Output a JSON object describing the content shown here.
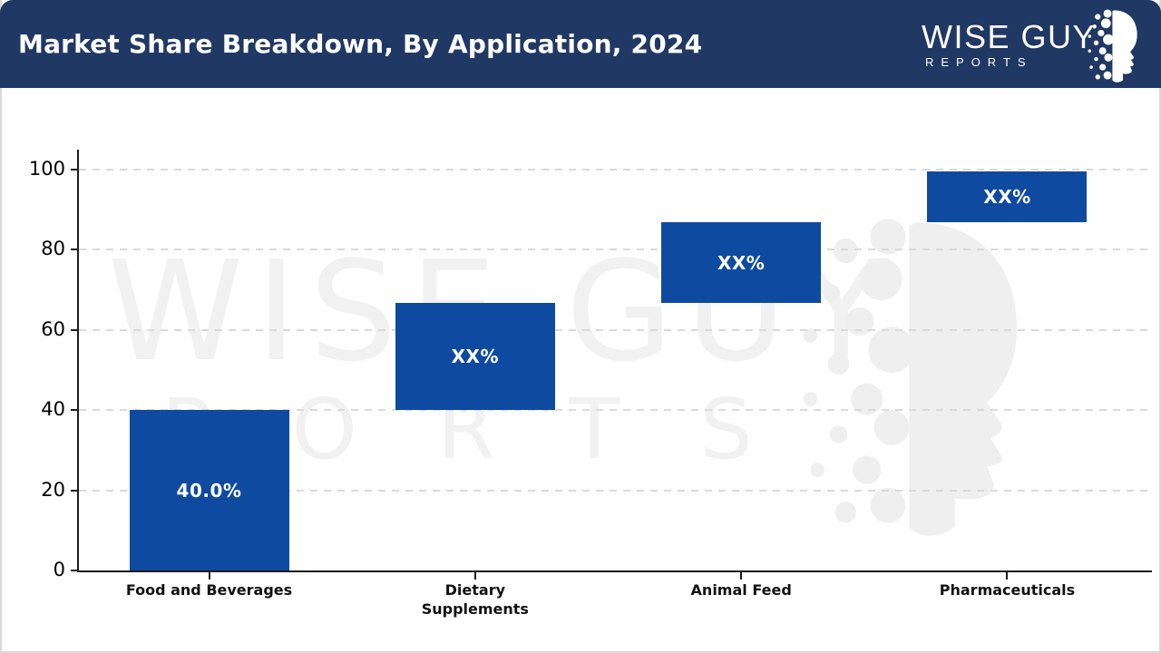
{
  "header": {
    "title": "Market Share Breakdown, By Application, 2024",
    "bg_color": "#1f3864",
    "text_color": "#ffffff",
    "brand": {
      "line1": "WISE GUY",
      "line2": "REPORTS"
    }
  },
  "watermark": {
    "line1": "WISE GUY",
    "line2": "PORTS"
  },
  "chart_data": {
    "type": "bar",
    "subtype": "floating-waterfall",
    "title": "Market Share Breakdown, By Application, 2024",
    "categories": [
      "Food and Beverages",
      "Dietary\nSupplements",
      "Animal Feed",
      "Pharmaceuticals"
    ],
    "segments": [
      {
        "category": "Food and Beverages",
        "start": 0,
        "end": 40.0,
        "label": "40.0%"
      },
      {
        "category": "Dietary\nSupplements",
        "start": 40.0,
        "end": 66.8,
        "label": "XX%"
      },
      {
        "category": "Animal Feed",
        "start": 66.8,
        "end": 86.8,
        "label": "XX%"
      },
      {
        "category": "Pharmaceuticals",
        "start": 86.8,
        "end": 99.5,
        "label": "XX%"
      }
    ],
    "yticks": [
      0,
      20,
      40,
      60,
      80,
      100
    ],
    "ylim": [
      0,
      105
    ],
    "xlabel": "",
    "ylabel": "",
    "grid": "horizontal-dashed",
    "gridline_color": "#dadada",
    "bar_color": "#0e4a9f",
    "value_label_color": "#ffffff",
    "axis_color": "#1c1c1c",
    "legend": "none"
  }
}
